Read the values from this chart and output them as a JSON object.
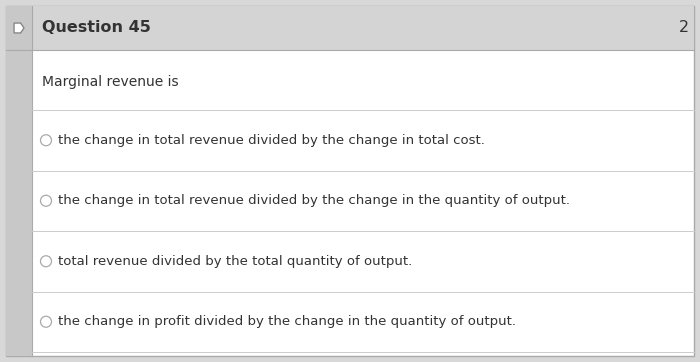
{
  "title": "Question 45",
  "title_number": "2",
  "question": "Marginal revenue is",
  "options": [
    "the change in total revenue divided by the change in total cost.",
    "the change in total revenue divided by the change in the quantity of output.",
    "total revenue divided by the total quantity of output.",
    "the change in profit divided by the change in the quantity of output."
  ],
  "bg_color": "#d8d8d8",
  "panel_bg": "#ffffff",
  "header_bg": "#d4d4d4",
  "border_color": "#aaaaaa",
  "text_color": "#333333",
  "title_fontsize": 11.5,
  "question_fontsize": 10,
  "option_fontsize": 9.5,
  "circle_color": "#aaaaaa",
  "left_strip_color": "#c8c8c8",
  "divider_color": "#cccccc"
}
